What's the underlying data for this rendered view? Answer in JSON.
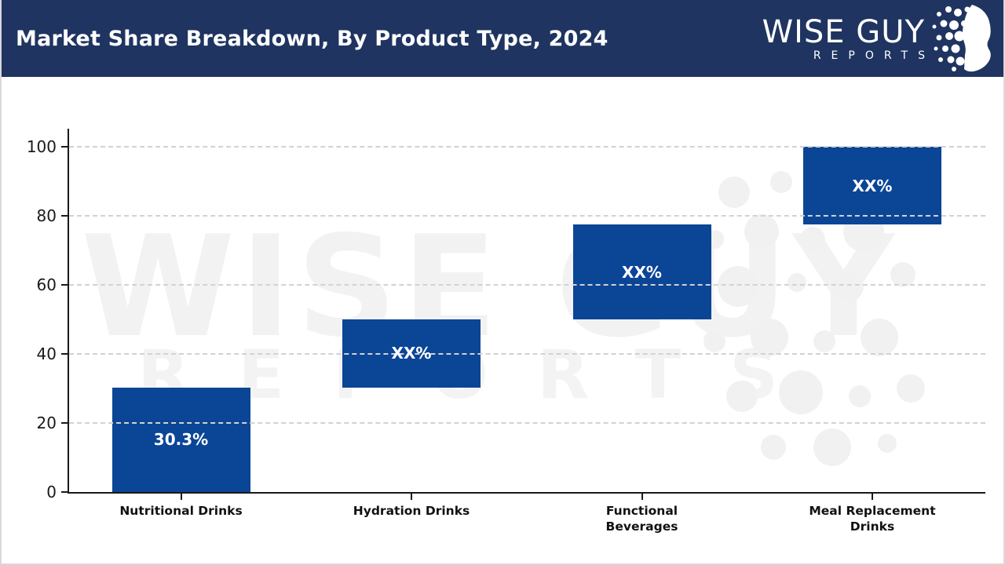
{
  "header": {
    "title": "Market Share Breakdown, By Product Type, 2024",
    "logo_line1": "WISE GUY",
    "logo_line2": "REPORTS",
    "bg_color": "#1f3460"
  },
  "watermark": {
    "line1": "WISE GUY",
    "line2": "REPORTS"
  },
  "chart_data": {
    "type": "bar",
    "subtype": "floating-waterfall",
    "title": "Market Share Breakdown, By Product Type, 2024",
    "categories": [
      "Nutritional Drinks",
      "Hydration Drinks",
      "Functional Beverages",
      "Meal Replacement Drinks"
    ],
    "category_label_lines": [
      [
        "Nutritional Drinks"
      ],
      [
        "Hydration Drinks"
      ],
      [
        "Functional",
        "Beverages"
      ],
      [
        "Meal Replacement",
        "Drinks"
      ]
    ],
    "segments": [
      {
        "category": "Nutritional Drinks",
        "start": 0,
        "end": 30.3,
        "label": "30.3%"
      },
      {
        "category": "Hydration Drinks",
        "start": 30.3,
        "end": 50,
        "label": "XX%"
      },
      {
        "category": "Functional Beverages",
        "start": 50,
        "end": 77.5,
        "label": "XX%"
      },
      {
        "category": "Meal Replacement Drinks",
        "start": 77.5,
        "end": 100,
        "label": "XX%"
      }
    ],
    "values_masked": true,
    "segment_heights": [
      30.3,
      19.7,
      27.5,
      22.5
    ],
    "xlabel": "",
    "ylabel": "",
    "ylim": [
      0,
      100
    ],
    "yticks": [
      0,
      20,
      40,
      60,
      80,
      100
    ],
    "grid": "horizontal-dashed",
    "gridline_color": "#d2d2d2",
    "bar_color": "#0b4596",
    "bar_label_color": "#ffffff",
    "legend_position": "none"
  }
}
